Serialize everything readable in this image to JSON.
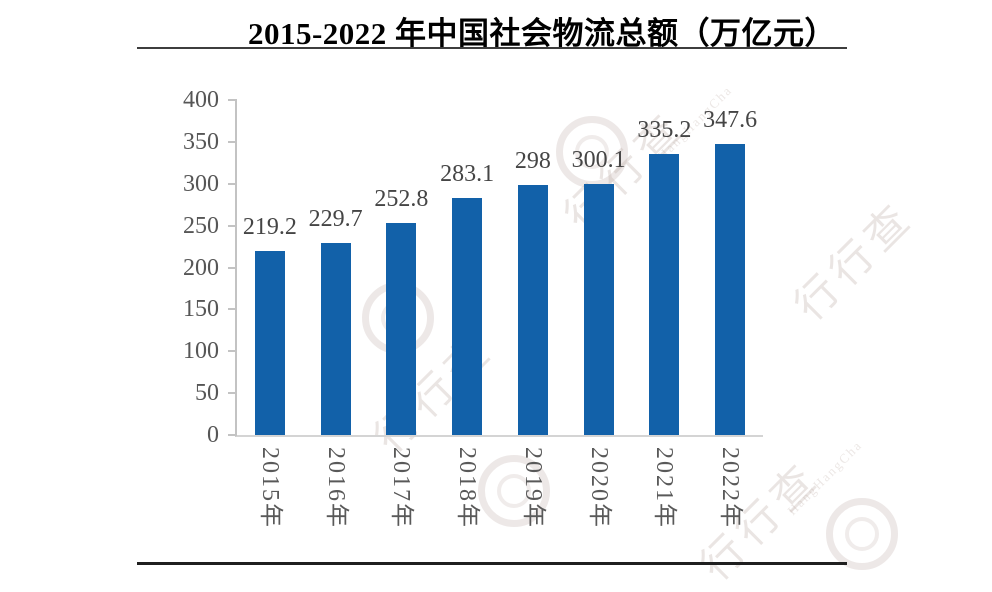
{
  "title": "2015-2022 年中国社会物流总额（万亿元）",
  "watermark": {
    "brand": "行行查",
    "latin": "HangHangCha"
  },
  "chart_data": {
    "type": "bar",
    "title": "2015-2022 年中国社会物流总额（万亿元）",
    "categories": [
      "2015年",
      "2016年",
      "2017年",
      "2018年",
      "2019年",
      "2020年",
      "2021年",
      "2022年"
    ],
    "values": [
      219.2,
      229.7,
      252.8,
      283.1,
      298,
      300.1,
      335.2,
      347.6
    ],
    "data_labels": [
      "219.2",
      "229.7",
      "252.8",
      "283.1",
      "298",
      "300.1",
      "335.2",
      "347.6"
    ],
    "xlabel": "",
    "ylabel": "",
    "ylim": [
      0,
      400
    ],
    "yticks": [
      0,
      50,
      100,
      150,
      200,
      250,
      300,
      350,
      400
    ],
    "grid": false,
    "legend": null,
    "bar_color": "#1261A9",
    "data_label_color": "#454545",
    "axis_label_color": "#595959",
    "axis_line_color": "#C3C3C3"
  }
}
